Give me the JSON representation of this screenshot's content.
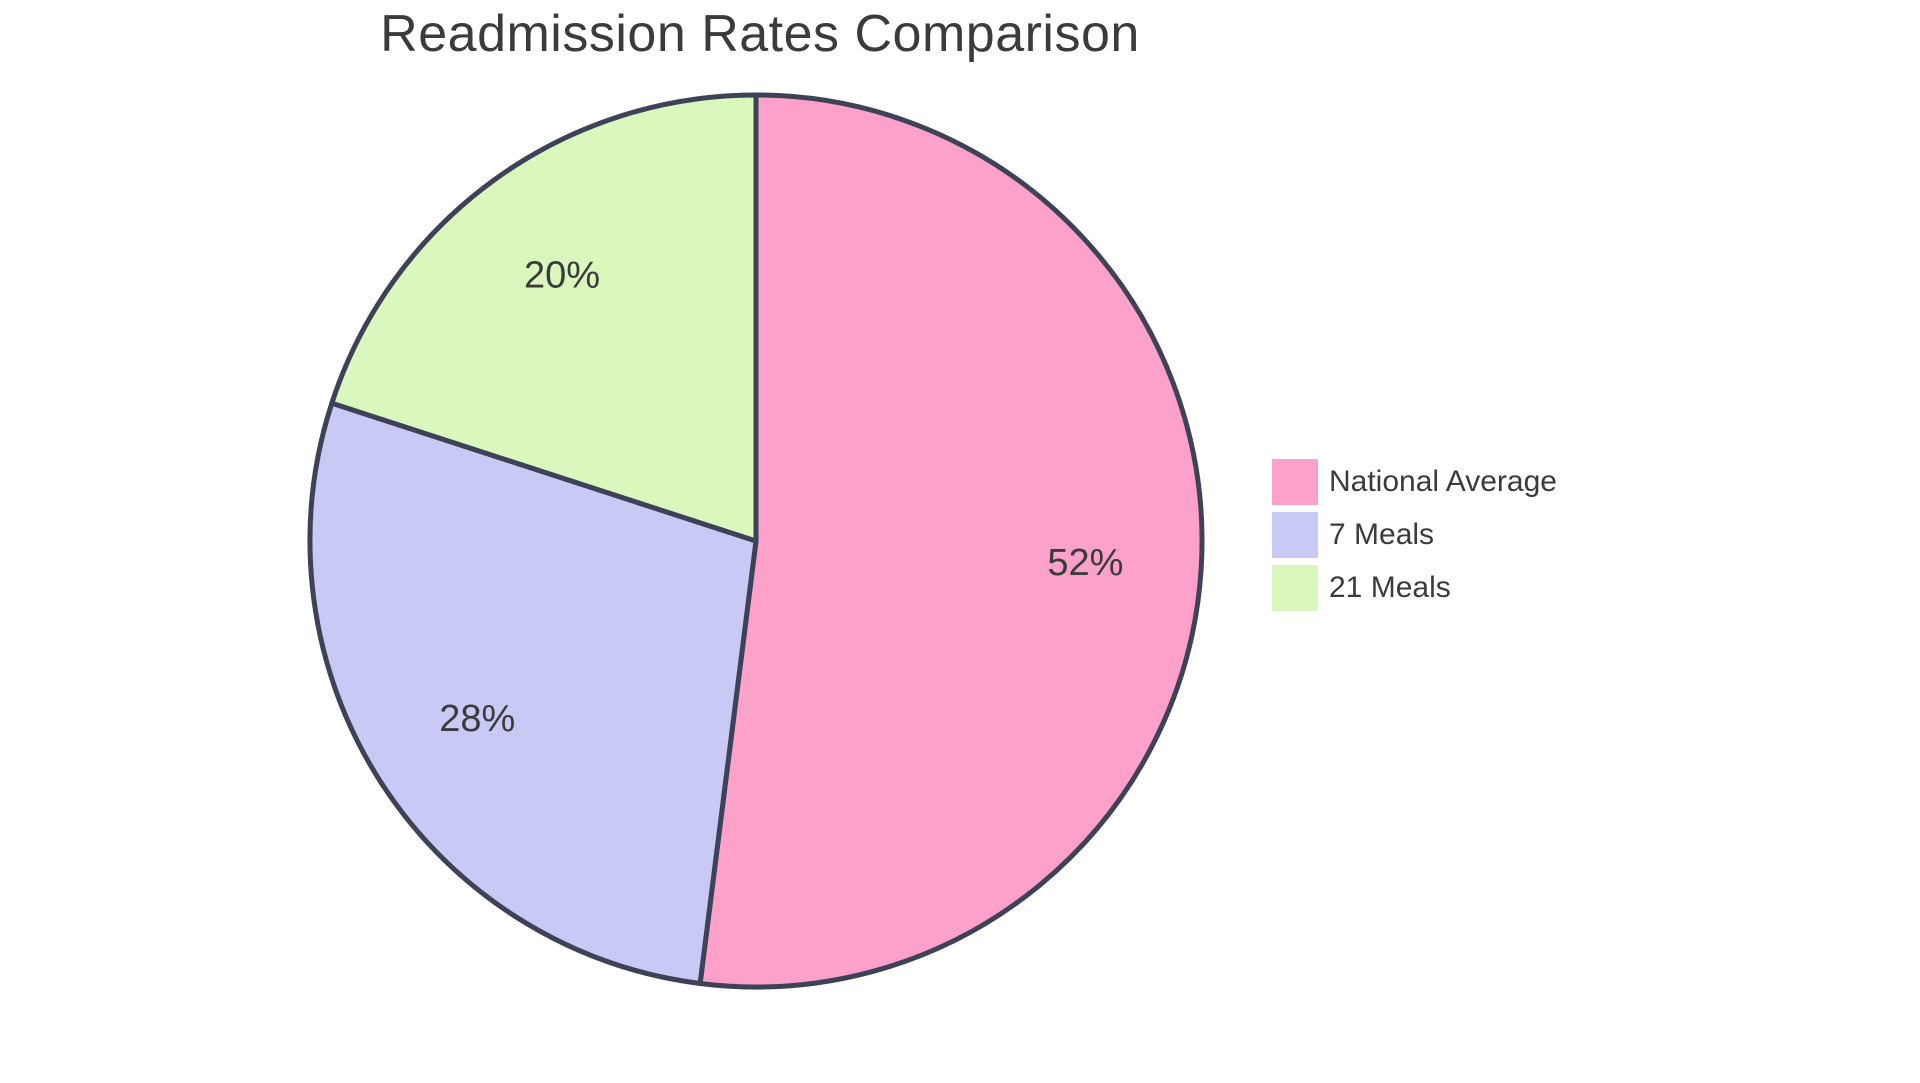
{
  "title": "Readmission Rates Comparison",
  "chart_data": {
    "type": "pie",
    "title": "Readmission Rates Comparison",
    "start_angle": "12 o'clock",
    "direction": "clockwise",
    "slices": [
      {
        "name": "National Average",
        "value": 52,
        "label": "52%",
        "color": "#FCA1C9"
      },
      {
        "name": "7 Meals",
        "value": 28,
        "label": "28%",
        "color": "#C8CAF5"
      },
      {
        "name": "21 Meals",
        "value": 20,
        "label": "20%",
        "color": "#DAF7BE"
      }
    ],
    "outline_color": "#3E4257",
    "label_color": "#3B3B3B",
    "legend_position": "right",
    "background": "#FFFFFF"
  },
  "legend": {
    "items": [
      {
        "label": "National Average",
        "color": "#FCA1C9"
      },
      {
        "label": "7 Meals",
        "color": "#C8CAF5"
      },
      {
        "label": "21 Meals",
        "color": "#DAF7BE"
      }
    ]
  }
}
